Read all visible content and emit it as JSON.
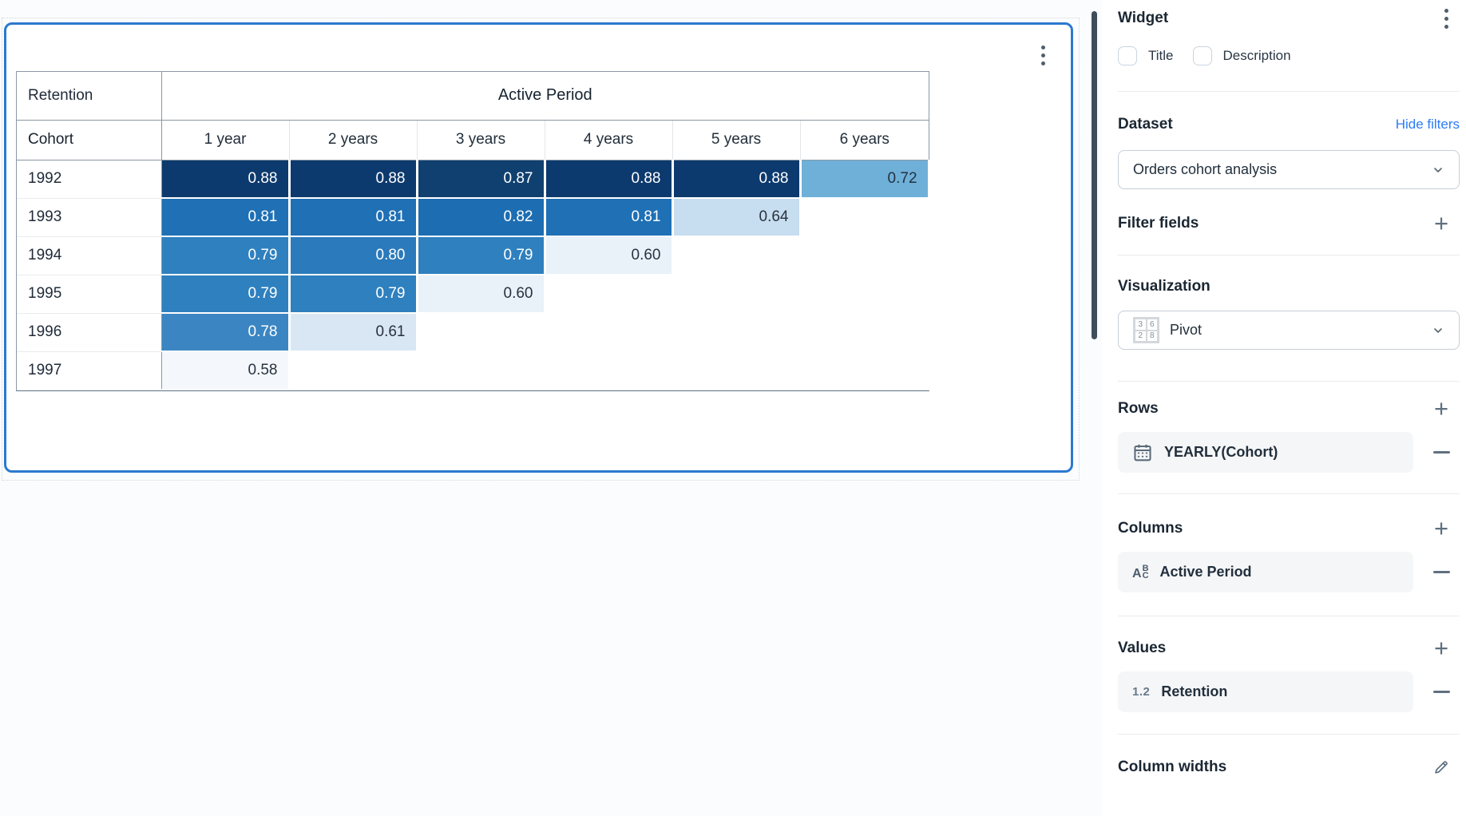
{
  "card": {
    "menu_icon": "kebab-menu"
  },
  "chart_data": {
    "type": "heatmap",
    "title": "Retention",
    "column_group_label": "Active Period",
    "row_header": "Cohort",
    "columns": [
      "1 year",
      "2 years",
      "3 years",
      "4 years",
      "5 years",
      "6 years"
    ],
    "rows": [
      "1992",
      "1993",
      "1994",
      "1995",
      "1996",
      "1997"
    ],
    "values": [
      [
        0.88,
        0.88,
        0.87,
        0.88,
        0.88,
        0.72
      ],
      [
        0.81,
        0.81,
        0.82,
        0.81,
        0.64,
        null
      ],
      [
        0.79,
        0.8,
        0.79,
        0.6,
        null,
        null
      ],
      [
        0.79,
        0.79,
        0.6,
        null,
        null,
        null
      ],
      [
        0.78,
        0.61,
        null,
        null,
        null,
        null
      ],
      [
        0.58,
        null,
        null,
        null,
        null,
        null
      ]
    ],
    "cells": [
      [
        {
          "v": "0.88",
          "bg": "#0d3a6e",
          "fg": "#ffffff"
        },
        {
          "v": "0.88",
          "bg": "#0d3a6e",
          "fg": "#ffffff"
        },
        {
          "v": "0.87",
          "bg": "#104070",
          "fg": "#ffffff"
        },
        {
          "v": "0.88",
          "bg": "#0d3a6e",
          "fg": "#ffffff"
        },
        {
          "v": "0.88",
          "bg": "#0d3a6e",
          "fg": "#ffffff"
        },
        {
          "v": "0.72",
          "bg": "#6fb0d8",
          "fg": "#233241"
        }
      ],
      [
        {
          "v": "0.81",
          "bg": "#1f70b5",
          "fg": "#ffffff"
        },
        {
          "v": "0.81",
          "bg": "#1f70b5",
          "fg": "#ffffff"
        },
        {
          "v": "0.82",
          "bg": "#1d6db2",
          "fg": "#ffffff"
        },
        {
          "v": "0.81",
          "bg": "#1f70b5",
          "fg": "#ffffff"
        },
        {
          "v": "0.64",
          "bg": "#c7ddf0",
          "fg": "#28323e"
        },
        null
      ],
      [
        {
          "v": "0.79",
          "bg": "#2f80bf",
          "fg": "#ffffff"
        },
        {
          "v": "0.80",
          "bg": "#2b7abb",
          "fg": "#ffffff"
        },
        {
          "v": "0.79",
          "bg": "#2f80bf",
          "fg": "#ffffff"
        },
        {
          "v": "0.60",
          "bg": "#e9f1f9",
          "fg": "#28323e"
        },
        null,
        null
      ],
      [
        {
          "v": "0.79",
          "bg": "#2f80bf",
          "fg": "#ffffff"
        },
        {
          "v": "0.79",
          "bg": "#2f80bf",
          "fg": "#ffffff"
        },
        {
          "v": "0.60",
          "bg": "#e9f1f9",
          "fg": "#28323e"
        },
        null,
        null,
        null
      ],
      [
        {
          "v": "0.78",
          "bg": "#3b86c2",
          "fg": "#ffffff"
        },
        {
          "v": "0.61",
          "bg": "#d9e7f4",
          "fg": "#28323e"
        },
        null,
        null,
        null,
        null
      ],
      [
        {
          "v": "0.58",
          "bg": "#f4f8fc",
          "fg": "#28323e"
        },
        null,
        null,
        null,
        null,
        null
      ]
    ],
    "legend": "none",
    "grid": "on"
  },
  "sidebar": {
    "title": "Widget",
    "checkboxes": [
      {
        "label": "Title",
        "checked": false
      },
      {
        "label": "Description",
        "checked": false
      }
    ],
    "dataset": {
      "heading": "Dataset",
      "link": "Hide filters",
      "selected": "Orders cohort analysis"
    },
    "filter_fields": {
      "heading": "Filter fields"
    },
    "visualization": {
      "heading": "Visualization",
      "selected": "Pivot",
      "icon_numbers": [
        "3",
        "6",
        "2",
        "8"
      ]
    },
    "rows_section": {
      "heading": "Rows",
      "items": [
        {
          "icon": "calendar-icon",
          "label": "YEARLY(Cohort)"
        }
      ]
    },
    "columns_section": {
      "heading": "Columns",
      "items": [
        {
          "icon": "text-type-icon",
          "label": "Active Period"
        }
      ]
    },
    "values_section": {
      "heading": "Values",
      "items": [
        {
          "icon": "numeric-type-icon",
          "icon_text": "1.2",
          "label": "Retention"
        }
      ]
    },
    "column_widths": {
      "heading": "Column widths"
    },
    "colors": {
      "accent_link": "#2b7cf7",
      "card_border": "#2b79cf",
      "scrollbar": "#3f4e5a"
    }
  }
}
